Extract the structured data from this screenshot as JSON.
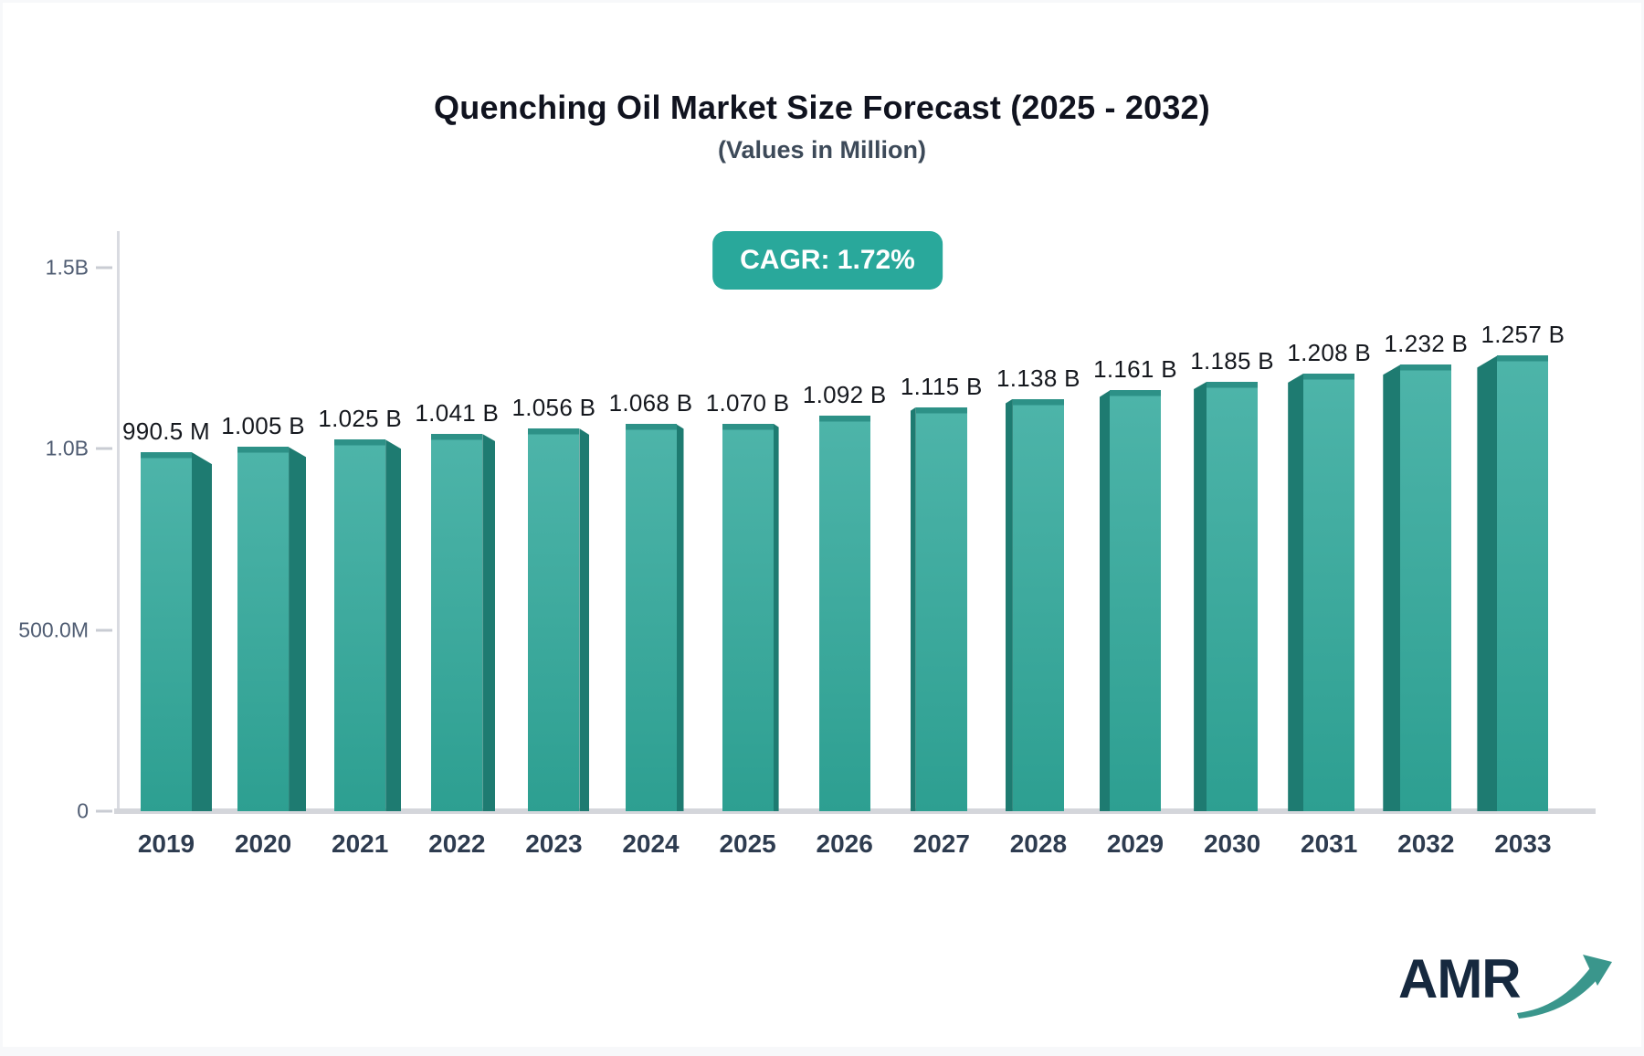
{
  "header": {
    "title": "Quenching Oil Market Size Forecast (2025 - 2032)",
    "subtitle": "(Values in Million)"
  },
  "badge": {
    "label": "CAGR: 1.72%"
  },
  "logo": {
    "text": "AMR"
  },
  "colors": {
    "bar_front_top": "#4db4a9",
    "bar_front_bottom": "#2d9f91",
    "bar_cap": "#2d9187",
    "bar_side": "#1e7b71",
    "badge_bg": "#29a89b",
    "axis": "#d6d8de",
    "logo_navy": "#16293f",
    "logo_teal": "#3a968c"
  },
  "chart_data": {
    "type": "bar",
    "title": "Quenching Oil Market Size Forecast (2025 - 2032)",
    "subtitle": "(Values in Million)",
    "unit": "Million USD",
    "cagr": "1.72%",
    "categories": [
      "2019",
      "2020",
      "2021",
      "2022",
      "2023",
      "2024",
      "2025",
      "2026",
      "2027",
      "2028",
      "2029",
      "2030",
      "2031",
      "2032",
      "2033"
    ],
    "values_millions": [
      990.5,
      1005,
      1025,
      1041,
      1056,
      1068,
      1070,
      1092,
      1115,
      1138,
      1161,
      1185,
      1208,
      1232,
      1257
    ],
    "value_labels": [
      "990.5 M",
      "1.005 B",
      "1.025 B",
      "1.041 B",
      "1.056 B",
      "1.068 B",
      "1.070 B",
      "1.092 B",
      "1.115 B",
      "1.138 B",
      "1.161 B",
      "1.185 B",
      "1.208 B",
      "1.232 B",
      "1.257 B"
    ],
    "xlabel": "",
    "ylabel": "",
    "ylim": [
      0,
      1500
    ],
    "yticks": [
      {
        "value": 0,
        "label": "0"
      },
      {
        "value": 500,
        "label": "500.0M"
      },
      {
        "value": 1000,
        "label": "1.0B"
      },
      {
        "value": 1500,
        "label": "1.5B"
      }
    ],
    "grid": false,
    "legend": "none",
    "style": "3d-perspective-columns"
  }
}
